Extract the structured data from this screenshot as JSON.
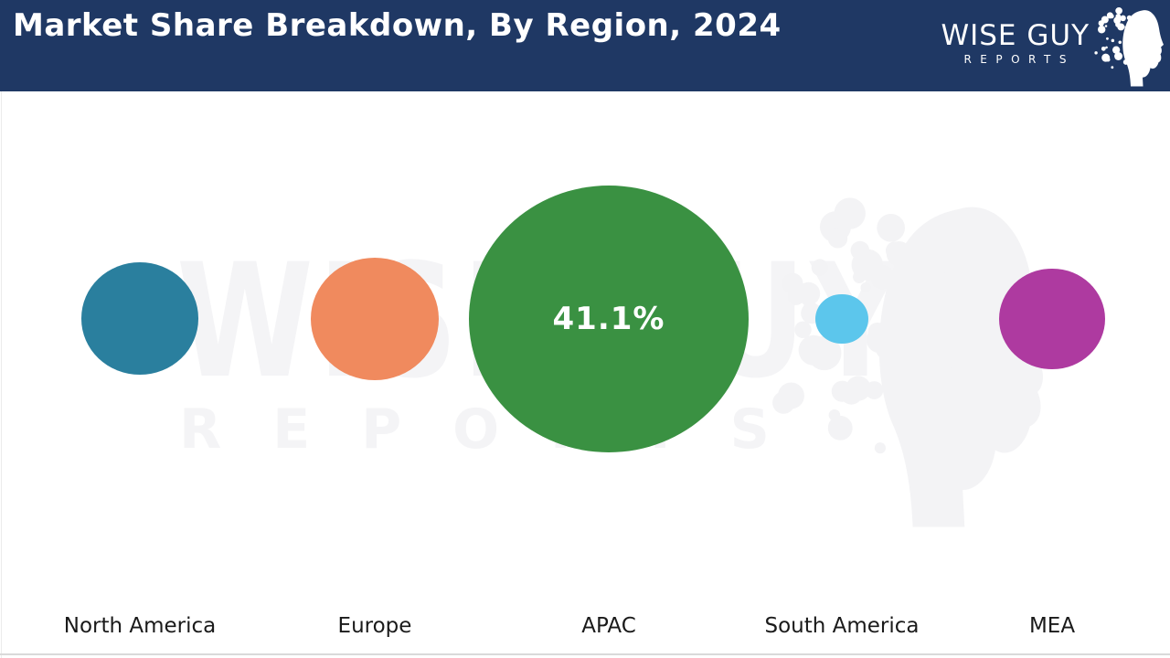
{
  "header": {
    "title": "Market Share Breakdown, By Region, 2024",
    "logo": {
      "brand_line1": "WISE GUY",
      "brand_line2": "REPORTS"
    }
  },
  "watermark": {
    "line1": "WISE GUY",
    "line2": "REPORTS"
  },
  "chart_data": {
    "type": "bubble",
    "title": "Market Share Breakdown, By Region, 2024",
    "categories": [
      "North America",
      "Europe",
      "APAC",
      "South America",
      "MEA"
    ],
    "values": [
      17.3,
      18.9,
      41.1,
      7.7,
      15.6
    ],
    "values_estimated_from_bubble_size": [
      true,
      true,
      false,
      true,
      true
    ],
    "value_labels": [
      "",
      "",
      "41.1%",
      "",
      ""
    ],
    "colors": [
      "#2a7f9e",
      "#f08a5e",
      "#3a9142",
      "#5cc6ec",
      "#ae3aa0"
    ],
    "xlabel": "",
    "ylabel": "",
    "legend": "none",
    "background": "#ffffff"
  },
  "colors": {
    "header_bg": "#1f3864",
    "title_text": "#ffffff",
    "watermark": "#f4f4f6",
    "label_text": "#1a1a1a",
    "bottom_line": "#d9d9d9"
  }
}
